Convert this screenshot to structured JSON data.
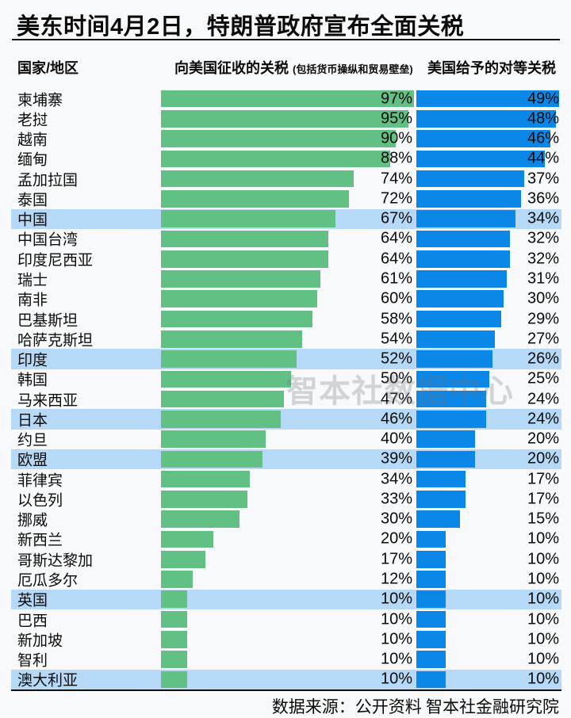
{
  "title": "美东时间4月2日，特朗普政府宣布全面关税",
  "headers": {
    "country": "国家/地区",
    "tariff_charged": "向美国征收的关税",
    "tariff_charged_note": "(包括货币操纵和贸易壁垒)",
    "reciprocal": "美国给予的对等关税"
  },
  "watermark": "智本社数据中心",
  "footer": "数据来源：公开资料  智本社金融研究院",
  "colors": {
    "green_bar": "#62c084",
    "blue_bar": "#0b87e8",
    "row_highlight": "#b5d9f6",
    "background": "#f8f9fa"
  },
  "chart_data": {
    "type": "bar",
    "orientation": "horizontal",
    "title": "美东时间4月2日，特朗普政府宣布全面关税",
    "value_suffix": "%",
    "categories": [
      "柬埔寨",
      "老挝",
      "越南",
      "缅甸",
      "孟加拉国",
      "泰国",
      "中国",
      "中国台湾",
      "印度尼西亚",
      "瑞士",
      "南非",
      "巴基斯坦",
      "哈萨克斯坦",
      "印度",
      "韩国",
      "马来西亚",
      "日本",
      "约旦",
      "欧盟",
      "菲律宾",
      "以色列",
      "挪威",
      "新西兰",
      "哥斯达黎加",
      "厄瓜多尔",
      "英国",
      "巴西",
      "新加坡",
      "智利",
      "澳大利亚"
    ],
    "series": [
      {
        "name": "向美国征收的关税(包括货币操纵和贸易壁垒)",
        "values": [
          97,
          95,
          90,
          88,
          74,
          72,
          67,
          64,
          64,
          61,
          60,
          58,
          54,
          52,
          50,
          47,
          46,
          40,
          39,
          34,
          33,
          30,
          20,
          17,
          12,
          10,
          10,
          10,
          10,
          10
        ]
      },
      {
        "name": "美国给予的对等关税",
        "values": [
          49,
          48,
          46,
          44,
          37,
          36,
          34,
          32,
          32,
          31,
          30,
          29,
          27,
          26,
          25,
          24,
          24,
          20,
          20,
          17,
          17,
          15,
          10,
          10,
          10,
          10,
          10,
          10,
          10,
          10
        ]
      }
    ],
    "highlighted": [
      "中国",
      "印度",
      "日本",
      "欧盟",
      "英国",
      "澳大利亚"
    ],
    "axis_max_charged": 97,
    "axis_max_reciprocal": 49,
    "grid": false,
    "legend_position": "none"
  }
}
